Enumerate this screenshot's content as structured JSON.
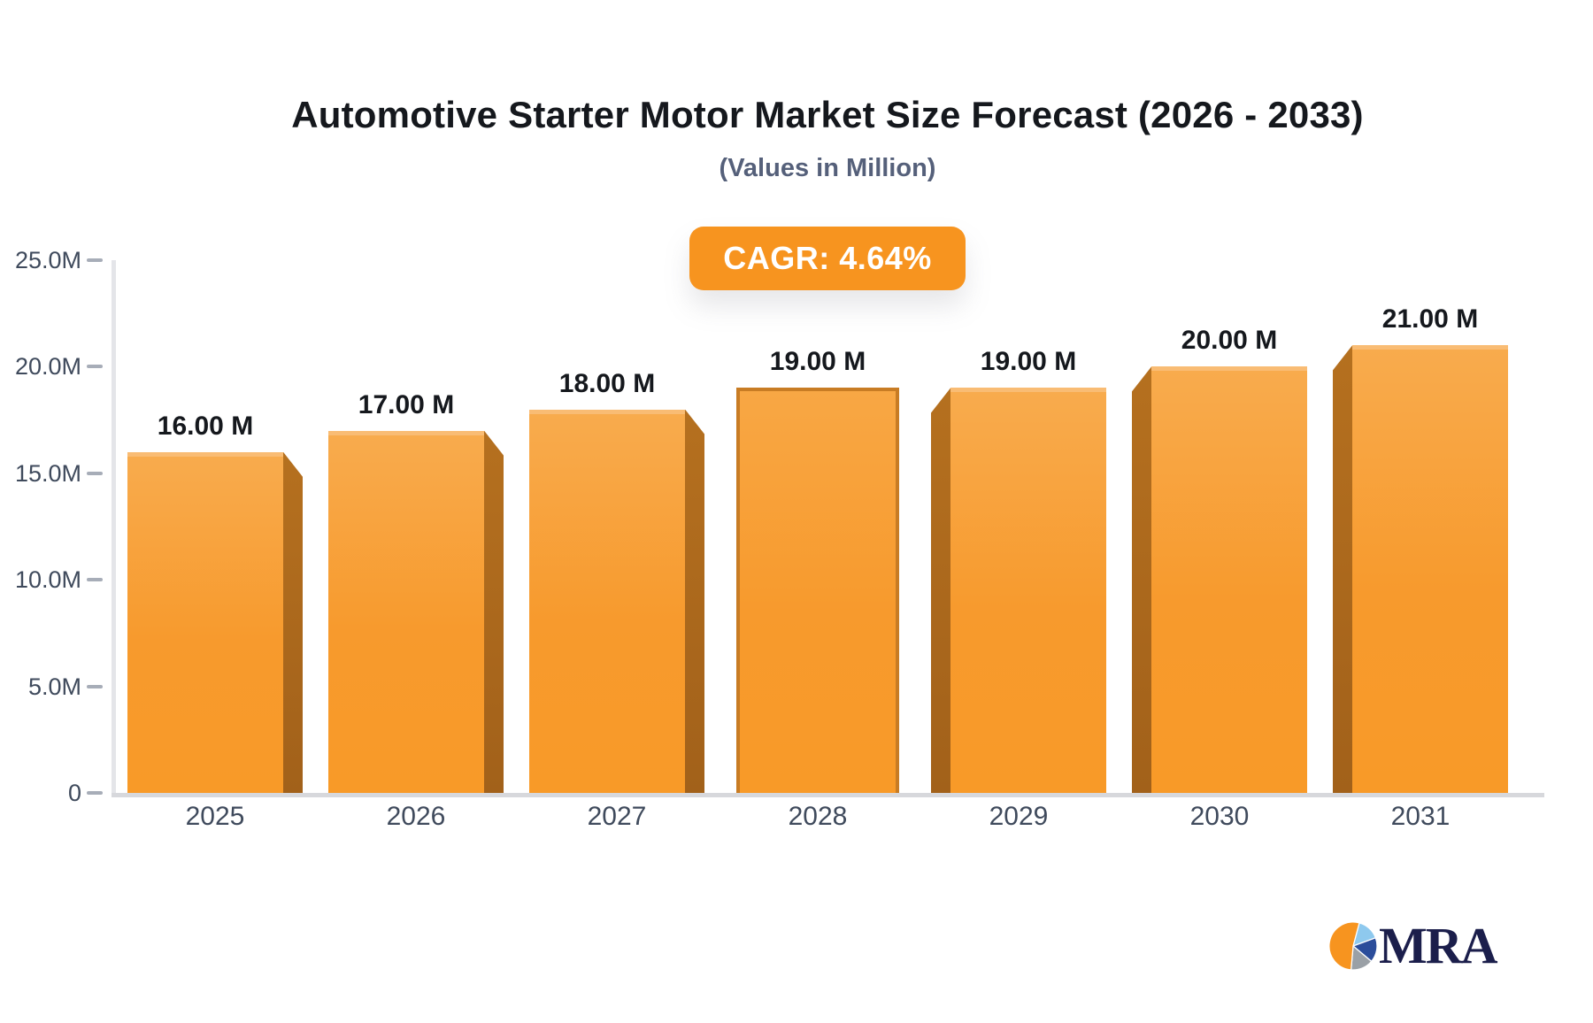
{
  "header": {
    "title": "Automotive Starter Motor Market Size Forecast (2026 - 2033)",
    "subtitle": "(Values in Million)"
  },
  "badge": {
    "label": "CAGR: 4.64%"
  },
  "chart_data": {
    "type": "bar",
    "title": "Automotive Starter Motor Market Size Forecast (2026 - 2033)",
    "subtitle": "(Values in Million)",
    "unit": "Million",
    "categories": [
      "2025",
      "2026",
      "2027",
      "2028",
      "2029",
      "2030",
      "2031"
    ],
    "values": [
      16,
      17,
      18,
      19,
      19,
      20,
      21
    ],
    "value_labels": [
      "16.00 M",
      "17.00 M",
      "18.00 M",
      "19.00 M",
      "19.00 M",
      "20.00 M",
      "21.00 M"
    ],
    "ylim": [
      0,
      25
    ],
    "y_ticks": [
      {
        "value": 0,
        "label": "0"
      },
      {
        "value": 5,
        "label": "5.0M"
      },
      {
        "value": 10,
        "label": "10.0M"
      },
      {
        "value": 15,
        "label": "15.0M"
      },
      {
        "value": 20,
        "label": "20.0M"
      },
      {
        "value": 25,
        "label": "25.0M"
      }
    ],
    "grid": false,
    "legend": "none",
    "annotation": "CAGR: 4.64%",
    "xlabel": "",
    "ylabel": ""
  },
  "logo": {
    "text": "MRA",
    "pie_slice_colors": [
      "#f7941f",
      "#8ec9ee",
      "#2b4d9b",
      "#9aa0a6"
    ],
    "text_color": "#1b1e4b"
  },
  "colors": {
    "accent": "#f7941f",
    "bar_face": "#f89a2d",
    "bar_face_light": "#f8ab4d",
    "bar_side": "#ad671c",
    "axis_line": "#d7d8dc",
    "tick_text": "#3f4a5c",
    "title_text": "#15181d",
    "subtitle_text": "#55607a",
    "background": "#ffffff"
  }
}
